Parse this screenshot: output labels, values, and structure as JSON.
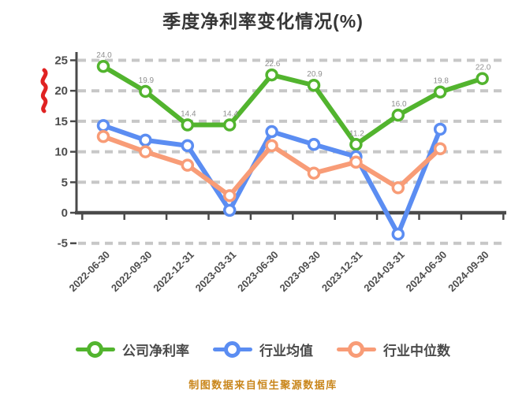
{
  "title": "季度净利率变化情况(%)",
  "footer": "制图数据来自恒生聚源数据库",
  "icons": {
    "red_mark": "red-scribble-mark"
  },
  "chart_data": {
    "type": "line",
    "title": "季度净利率变化情况(%)",
    "categories": [
      "2022-06-30",
      "2022-09-30",
      "2022-12-31",
      "2023-03-31",
      "2023-06-30",
      "2023-09-30",
      "2023-12-31",
      "2024-03-31",
      "2024-06-30",
      "2024-09-30"
    ],
    "series": [
      {
        "name": "公司净利率",
        "color": "#52b42e",
        "values": [
          24.0,
          19.9,
          14.4,
          14.4,
          22.6,
          20.9,
          11.2,
          16.0,
          19.8,
          22.0
        ],
        "point_labels": [
          "24.0",
          "19.9",
          "14.4",
          "14.4",
          "22.6",
          "20.9",
          "11.2",
          "16.0",
          "19.8",
          "22.0"
        ]
      },
      {
        "name": "行业均值",
        "color": "#5b8df2",
        "values": [
          14.3,
          11.9,
          11.0,
          0.4,
          13.3,
          11.2,
          9.2,
          -3.5,
          13.7
        ]
      },
      {
        "name": "行业中位数",
        "color": "#f89c77",
        "values": [
          12.5,
          10.0,
          7.8,
          2.8,
          11.0,
          6.5,
          8.3,
          4.1,
          10.5
        ]
      }
    ],
    "y_ticks": [
      25,
      20,
      15,
      10,
      5,
      0,
      -5
    ],
    "ylim": [
      -5,
      25
    ],
    "xlabel": "",
    "ylabel": "",
    "grid": "horizontal-dashed",
    "legend_position": "bottom",
    "x_label_rotation": 45
  }
}
